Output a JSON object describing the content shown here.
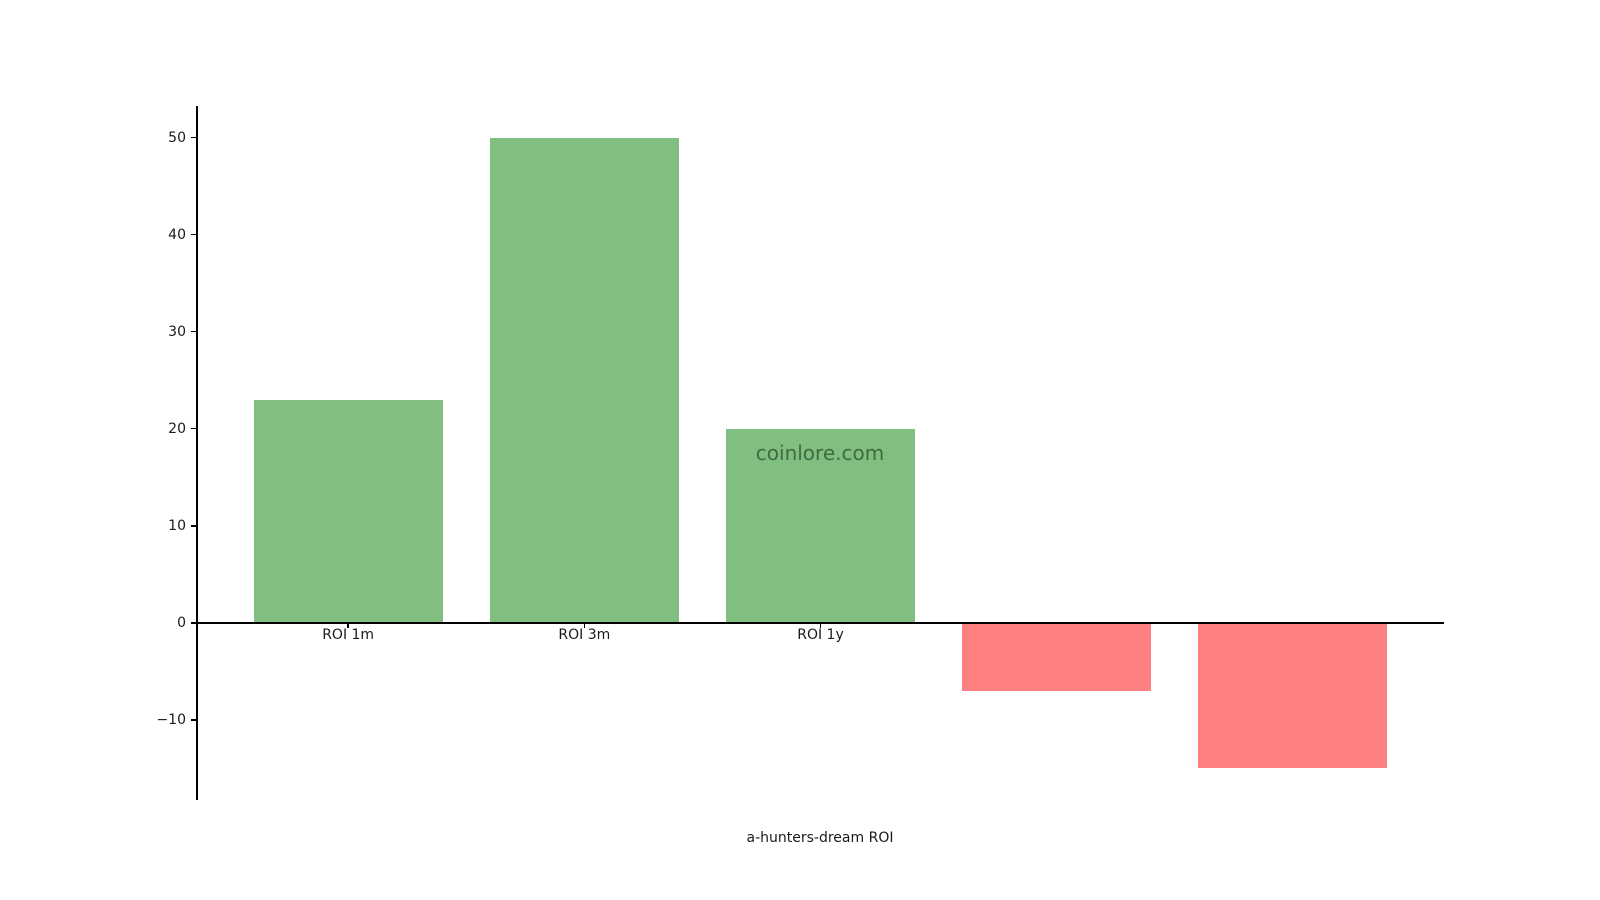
{
  "chart_data": {
    "type": "bar",
    "xlabel": "a-hunters-dream ROI",
    "watermark": "coinlore.com",
    "categories": [
      "ROI 1m",
      "ROI 3m",
      "ROI 1y",
      "",
      ""
    ],
    "values": [
      23,
      50,
      20,
      -7,
      -15
    ],
    "yticks": [
      50,
      40,
      30,
      20,
      10,
      0,
      -10
    ],
    "ylim": [
      -18.25,
      53.25
    ],
    "grid": false,
    "legend": "none",
    "background": "#ffffff",
    "colors": {
      "positive_bar": "#80bf80",
      "negative_bar": "#ff8080",
      "axis": "#000000",
      "tick_label": "#1a1a1a",
      "watermark_text": "#3f6b41",
      "xlabel_text": "#1a1a1a"
    }
  }
}
